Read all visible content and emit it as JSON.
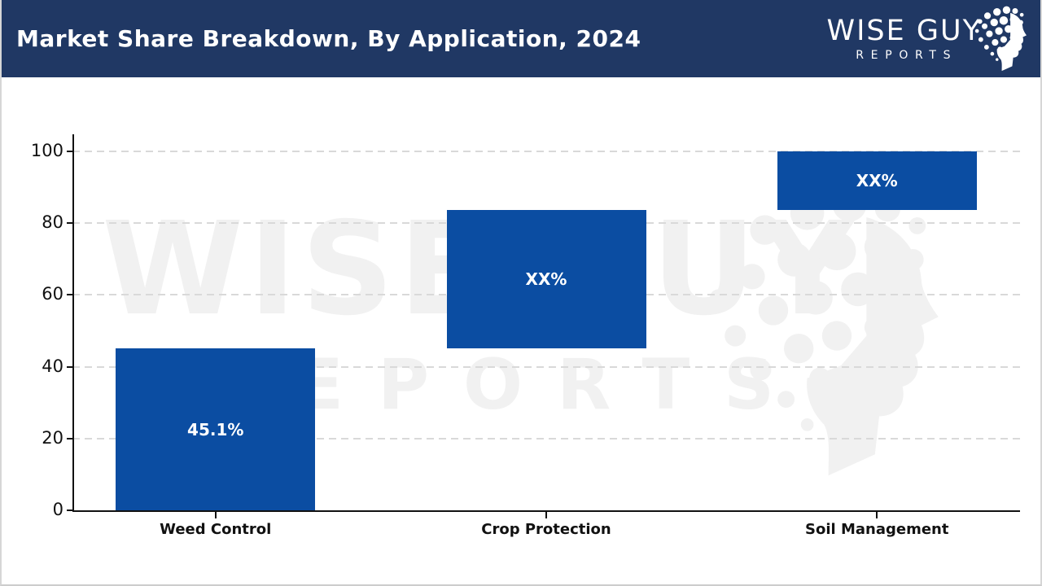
{
  "header": {
    "title": "Market Share Breakdown, By Application, 2024",
    "logo": {
      "wordmark": "WISE GUY",
      "subtext": "REPORTS"
    }
  },
  "watermark": {
    "wordmark": "WISE GUY",
    "subtext": "REPORTS"
  },
  "chart_data": {
    "type": "bar",
    "variant": "floating-segment-waterfall",
    "title": "Market Share Breakdown, By Application, 2024",
    "categories": [
      "Weed Control",
      "Crop Protection",
      "Soil Management"
    ],
    "series": [
      {
        "name": "Market share (%)",
        "segments": [
          {
            "category": "Weed Control",
            "start": 0,
            "end": 45.1,
            "label": "45.1%"
          },
          {
            "category": "Crop Protection",
            "start": 45.1,
            "end": 83.6,
            "label": "XX%"
          },
          {
            "category": "Soil Management",
            "start": 83.6,
            "end": 100,
            "label": "XX%"
          }
        ]
      }
    ],
    "xlabel": "",
    "ylabel": "",
    "ylim": [
      0,
      100
    ],
    "yticks": [
      0,
      20,
      40,
      60,
      80,
      100
    ],
    "grid": {
      "horizontal": true,
      "style": "dashed"
    },
    "legend": "none",
    "colors": {
      "bar": "#0b4da2",
      "bar_label": "#ffffff",
      "axis": "#111111",
      "gridline": "#d9d9d9",
      "tick_label": "#111111",
      "header_bg": "#203864",
      "header_text": "#ffffff",
      "watermark": "#f1f1f1"
    }
  }
}
